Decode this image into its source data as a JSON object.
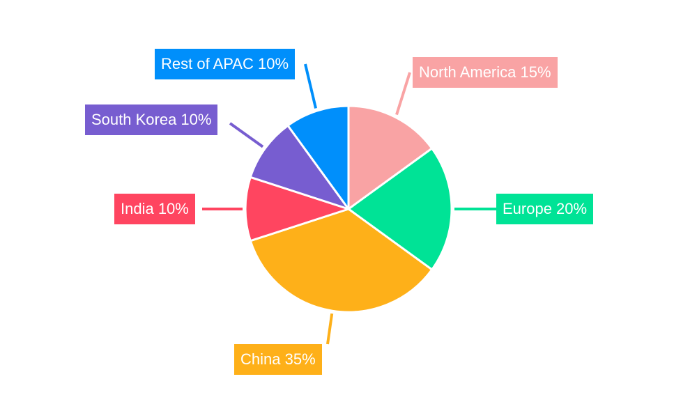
{
  "chart_data": {
    "type": "pie",
    "title": "",
    "start": "top",
    "direction": "clockwise",
    "slices": [
      {
        "label": "North America",
        "value": 15,
        "display": "North America 15%",
        "color": "#F9A3A4"
      },
      {
        "label": "Europe",
        "value": 20,
        "display": "Europe 20%",
        "color": "#00E396"
      },
      {
        "label": "China",
        "value": 35,
        "display": "China 35%",
        "color": "#FEB019"
      },
      {
        "label": "India",
        "value": 10,
        "display": "India 10%",
        "color": "#FF4560"
      },
      {
        "label": "South Korea",
        "value": 10,
        "display": "South Korea 10%",
        "color": "#775DD0"
      },
      {
        "label": "Rest of APAC",
        "value": 10,
        "display": "Rest of APAC 10%",
        "color": "#008FFB"
      }
    ]
  }
}
